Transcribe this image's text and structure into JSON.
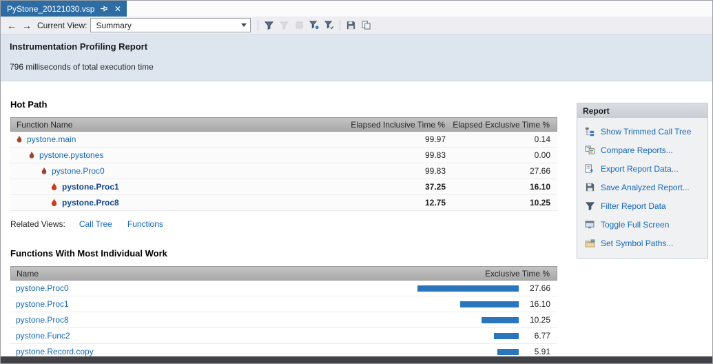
{
  "tab": {
    "title": "PyStone_20121030.vsp"
  },
  "toolbar": {
    "current_view_label": "Current View:",
    "view_value": "Summary",
    "icons": [
      "back-icon",
      "forward-icon",
      "filter-icon",
      "filter-disabled-icon",
      "stop-icon",
      "show-filter-icon",
      "apply-filter-icon",
      "save-icon",
      "copy-icon"
    ]
  },
  "header": {
    "title": "Instrumentation Profiling Report",
    "subtitle": "796 milliseconds of total execution time"
  },
  "hot_path": {
    "title": "Hot Path",
    "columns": [
      "Function Name",
      "Elapsed Inclusive Time %",
      "Elapsed Exclusive Time %"
    ],
    "rows": [
      {
        "name": "pystone.main",
        "inclusive": "99.97",
        "exclusive": "0.14"
      },
      {
        "name": "pystone.pystones",
        "inclusive": "99.83",
        "exclusive": "0.00"
      },
      {
        "name": "pystone.Proc0",
        "inclusive": "99.83",
        "exclusive": "27.66"
      },
      {
        "name": "pystone.Proc1",
        "inclusive": "37.25",
        "exclusive": "16.10"
      },
      {
        "name": "pystone.Proc8",
        "inclusive": "12.75",
        "exclusive": "10.25"
      }
    ],
    "related_views_label": "Related Views:",
    "related_links": [
      "Call Tree",
      "Functions"
    ]
  },
  "functions_work": {
    "title": "Functions With Most Individual Work",
    "columns": [
      "Name",
      "Exclusive Time %"
    ],
    "rows": [
      {
        "name": "pystone.Proc0",
        "value": 27.66,
        "display": "27.66"
      },
      {
        "name": "pystone.Proc1",
        "value": 16.1,
        "display": "16.10"
      },
      {
        "name": "pystone.Proc8",
        "value": 10.25,
        "display": "10.25"
      },
      {
        "name": "pystone.Func2",
        "value": 6.77,
        "display": "6.77"
      },
      {
        "name": "pystone.Record.copy",
        "value": 5.91,
        "display": "5.91"
      }
    ],
    "bar_color": "#2a76bc"
  },
  "report_panel": {
    "title": "Report",
    "items": [
      {
        "label": "Show Trimmed Call Tree",
        "icon": "call-tree-icon"
      },
      {
        "label": "Compare Reports...",
        "icon": "compare-reports-icon"
      },
      {
        "label": "Export Report Data...",
        "icon": "export-data-icon"
      },
      {
        "label": "Save Analyzed Report...",
        "icon": "save-report-icon"
      },
      {
        "label": "Filter Report Data",
        "icon": "filter-report-icon"
      },
      {
        "label": "Toggle Full Screen",
        "icon": "full-screen-icon"
      },
      {
        "label": "Set Symbol Paths...",
        "icon": "symbol-paths-icon"
      }
    ]
  },
  "colors": {
    "tab_accent": "#2d6da4",
    "link": "#1467b8",
    "hot_link": "#14468c",
    "bar": "#2a76bc"
  }
}
